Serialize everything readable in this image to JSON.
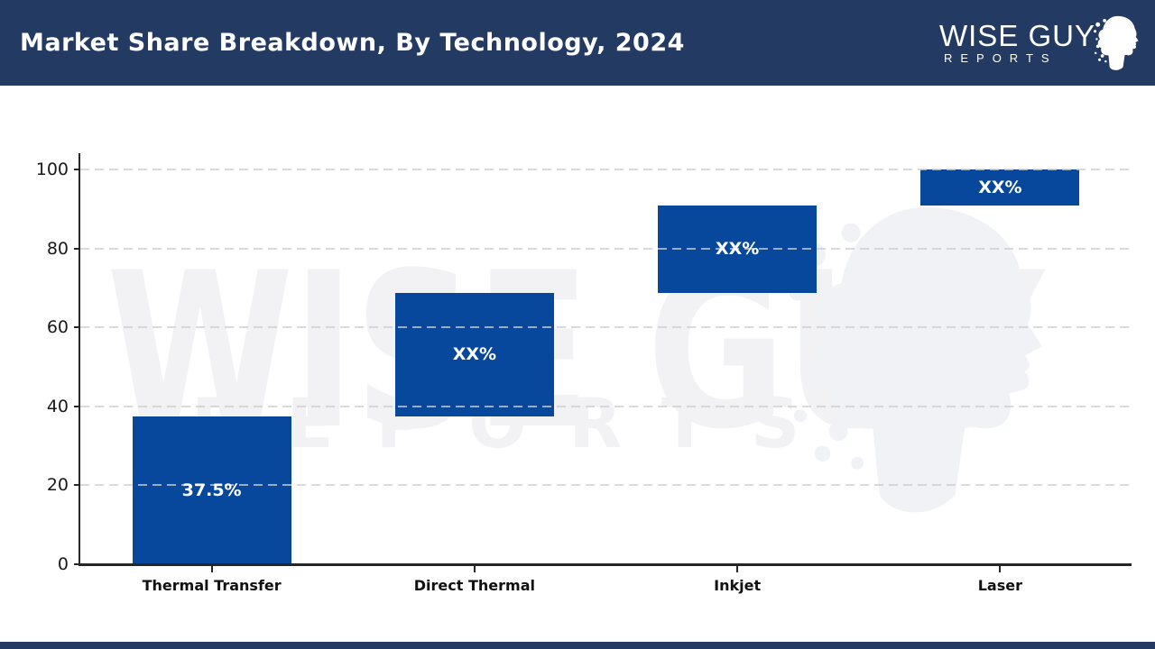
{
  "header": {
    "title": "Market Share Breakdown, By Technology, 2024",
    "brand_line1": "WISE GUY",
    "brand_line2": "REPORTS",
    "bg_color": "#233a63",
    "text_color": "#ffffff"
  },
  "watermark": {
    "line1": "WISE GUY",
    "line2": "REPORTS"
  },
  "chart_data": {
    "type": "bar",
    "subtype": "floating-waterfall",
    "title": "Market Share Breakdown, By Technology, 2024",
    "categories": [
      "Thermal Transfer",
      "Direct Thermal",
      "Inkjet",
      "Laser"
    ],
    "series": [
      {
        "name": "Market Share (%)",
        "segments": [
          {
            "category": "Thermal Transfer",
            "start": 0,
            "end": 37.5,
            "label": "37.5%"
          },
          {
            "category": "Direct Thermal",
            "start": 37.5,
            "end": 68.8,
            "label": "XX%"
          },
          {
            "category": "Inkjet",
            "start": 68.8,
            "end": 90.8,
            "label": "XX%"
          },
          {
            "category": "Laser",
            "start": 90.8,
            "end": 100,
            "label": "XX%"
          }
        ]
      }
    ],
    "xlabel": "",
    "ylabel": "",
    "ylim": [
      0,
      100
    ],
    "yticks": [
      0,
      20,
      40,
      60,
      80,
      100
    ],
    "grid": "horizontal-dashed",
    "legend": "none",
    "bar_color": "#07479c",
    "bar_label_color": "#ffffff",
    "axis_color": "#262626",
    "gridline_color": "#cdcdcd"
  }
}
